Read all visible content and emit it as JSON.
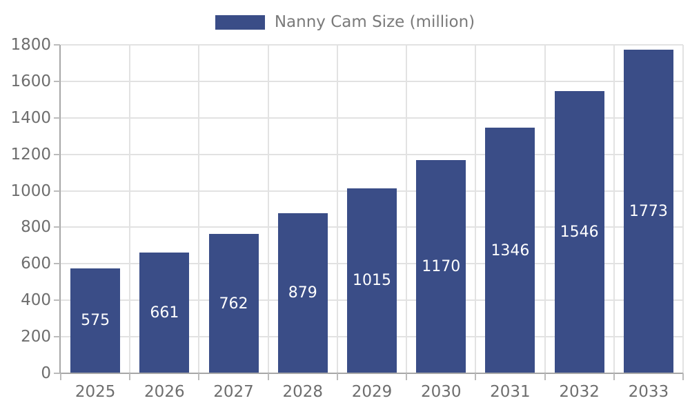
{
  "legend": {
    "label": "Nanny Cam Size (million)"
  },
  "chart_data": {
    "type": "bar",
    "title": "Nanny Cam Size (million)",
    "categories": [
      "2025",
      "2026",
      "2027",
      "2028",
      "2029",
      "2030",
      "2031",
      "2032",
      "2033"
    ],
    "values": [
      575,
      661,
      762,
      879,
      1015,
      1170,
      1346,
      1546,
      1773
    ],
    "xlabel": "",
    "ylabel": "",
    "ylim": [
      0,
      1800
    ],
    "ytick_step": 200,
    "ytick_labels": [
      "0",
      "200",
      "400",
      "600",
      "800",
      "1000",
      "1200",
      "1400",
      "1600",
      "1800"
    ],
    "grid": true,
    "legend_position": "top-center",
    "value_labels": "inside-center",
    "colors": {
      "bar": "#3A4D87",
      "value_label": "#FFFFFF",
      "axis_text": "#6E6E6E",
      "legend_text": "#7A7A7A",
      "gridline": "#E2E2E2",
      "axis_line": "#A6A6A6",
      "tick_mark": "#BBBBBB",
      "background": "#FFFFFF"
    }
  }
}
